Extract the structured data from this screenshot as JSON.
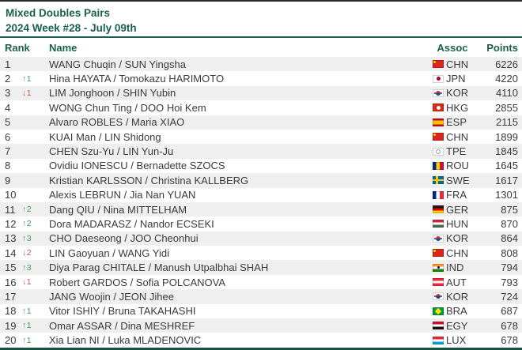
{
  "title": {
    "line1": "Mixed Doubles Pairs",
    "line2": "2024 Week #28 - July 09th"
  },
  "table": {
    "columns": {
      "rank": "Rank",
      "name": "Name",
      "assoc": "Assoc",
      "points": "Points"
    },
    "rows": [
      {
        "rank": 1,
        "change": "",
        "change_dir": "",
        "name": "WANG Chuqin / SUN Yingsha",
        "assoc": "CHN",
        "points": 6226
      },
      {
        "rank": 2,
        "change": "1",
        "change_dir": "up",
        "name": "Hina HAYATA / Tomokazu HARIMOTO",
        "assoc": "JPN",
        "points": 4220
      },
      {
        "rank": 3,
        "change": "1",
        "change_dir": "down",
        "name": "LIM Jonghoon / SHIN Yubin",
        "assoc": "KOR",
        "points": 4110
      },
      {
        "rank": 4,
        "change": "",
        "change_dir": "",
        "name": "WONG Chun Ting / DOO Hoi Kem",
        "assoc": "HKG",
        "points": 2855
      },
      {
        "rank": 5,
        "change": "",
        "change_dir": "",
        "name": "Alvaro ROBLES / Maria XIAO",
        "assoc": "ESP",
        "points": 2115
      },
      {
        "rank": 6,
        "change": "",
        "change_dir": "",
        "name": "KUAI Man / LIN Shidong",
        "assoc": "CHN",
        "points": 1899
      },
      {
        "rank": 7,
        "change": "",
        "change_dir": "",
        "name": "CHEN Szu-Yu / LIN Yun-Ju",
        "assoc": "TPE",
        "points": 1845
      },
      {
        "rank": 8,
        "change": "",
        "change_dir": "",
        "name": "Ovidiu IONESCU / Bernadette SZOCS",
        "assoc": "ROU",
        "points": 1645
      },
      {
        "rank": 9,
        "change": "",
        "change_dir": "",
        "name": "Kristian KARLSSON / Christina KALLBERG",
        "assoc": "SWE",
        "points": 1617
      },
      {
        "rank": 10,
        "change": "",
        "change_dir": "",
        "name": "Alexis LEBRUN / Jia Nan YUAN",
        "assoc": "FRA",
        "points": 1301
      },
      {
        "rank": 11,
        "change": "2",
        "change_dir": "up",
        "name": "Dang QIU / Nina MITTELHAM",
        "assoc": "GER",
        "points": 875
      },
      {
        "rank": 12,
        "change": "2",
        "change_dir": "up",
        "name": "Dora MADARASZ / Nandor ECSEKI",
        "assoc": "HUN",
        "points": 870
      },
      {
        "rank": 13,
        "change": "3",
        "change_dir": "up",
        "name": "CHO Daeseong / JOO Cheonhui",
        "assoc": "KOR",
        "points": 864
      },
      {
        "rank": 14,
        "change": "2",
        "change_dir": "down",
        "name": "LIN Gaoyuan / WANG Yidi",
        "assoc": "CHN",
        "points": 808
      },
      {
        "rank": 15,
        "change": "3",
        "change_dir": "up",
        "name": "Diya Parag CHITALE / Manush Utpalbhai SHAH",
        "assoc": "IND",
        "points": 794
      },
      {
        "rank": 16,
        "change": "1",
        "change_dir": "down",
        "name": "Robert GARDOS / Sofia POLCANOVA",
        "assoc": "AUT",
        "points": 793
      },
      {
        "rank": 17,
        "change": "",
        "change_dir": "",
        "name": "JANG Woojin / JEON Jihee",
        "assoc": "KOR",
        "points": 724
      },
      {
        "rank": 18,
        "change": "1",
        "change_dir": "up",
        "name": "Vitor ISHIY / Bruna TAKAHASHI",
        "assoc": "BRA",
        "points": 687
      },
      {
        "rank": 19,
        "change": "1",
        "change_dir": "up",
        "name": "Omar ASSAR / Dina MESHREF",
        "assoc": "EGY",
        "points": 678
      },
      {
        "rank": 20,
        "change": "1",
        "change_dir": "up",
        "name": "Xia Lian NI / Luka MLADENOVIC",
        "assoc": "LUX",
        "points": 678
      }
    ]
  },
  "icons": {
    "up_arrow": "↑",
    "down_arrow": "↓"
  },
  "colors": {
    "accent_green": "#1a5f4e",
    "row_stripe": "#efefef",
    "up_green": "#3f9e5a",
    "down_red": "#cf564c",
    "text": "#3a3a3a",
    "top_border": "#2a2a2a"
  }
}
